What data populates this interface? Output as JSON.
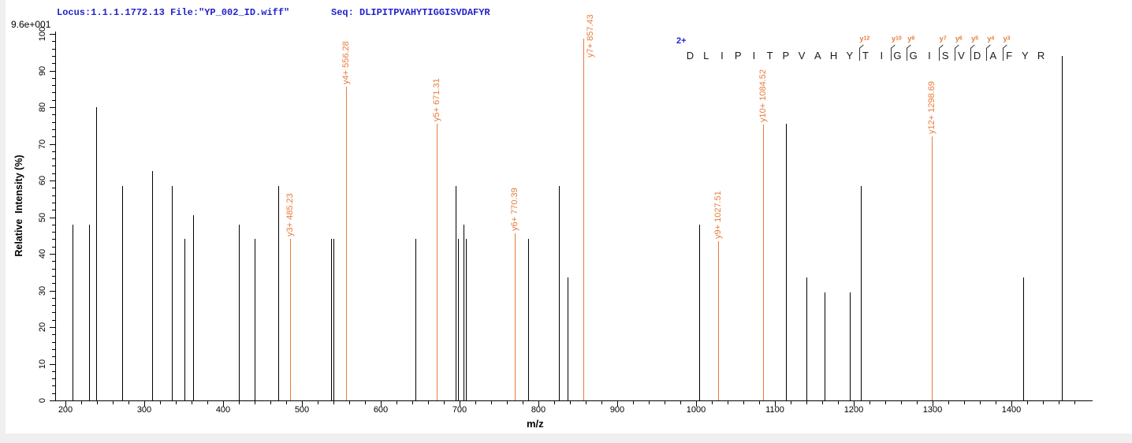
{
  "header": {
    "locus_file": "Locus:1.1.1.1772.13 File:\"YP_002_ID.wiff\"",
    "seq": "Seq: DLIPITPVAHYTIGGISVDAFYR"
  },
  "scale_label": "9.6e+001",
  "colors": {
    "annotation_orange": "#e87b3b",
    "header_blue": "#2222cc",
    "peak_black": "#000000",
    "residue_gray": "#1a1a1a",
    "marker_gray": "#333333"
  },
  "peptide": {
    "charge": "2+",
    "sequence": "DLIPITPVAHYTIGGISVDAFYR",
    "fragment_markers": [
      {
        "label": "y12",
        "before_residue_index": 11
      },
      {
        "label": "y10",
        "before_residue_index": 13
      },
      {
        "label": "y9",
        "before_residue_index": 14
      },
      {
        "label": "y7",
        "before_residue_index": 16
      },
      {
        "label": "y6",
        "before_residue_index": 17
      },
      {
        "label": "y5",
        "before_residue_index": 18
      },
      {
        "label": "y4",
        "before_residue_index": 19
      },
      {
        "label": "y3",
        "before_residue_index": 20
      }
    ]
  },
  "chart_data": {
    "type": "bar",
    "subtype": "tandem-ms-stick-spectrum",
    "title": "",
    "xlabel": "m/z",
    "ylabel": "Relative  Intensity (%)",
    "x_axis": {
      "min": 187,
      "max": 1502,
      "first_label": 200,
      "last_label": 1400,
      "major_tick_step": 100,
      "minor_tick_step": 20,
      "minor_tick_end": 1480
    },
    "y_axis": {
      "min": 0,
      "max": 100,
      "major_tick_step": 10,
      "minor_tick_step": 2,
      "max_intensity_label": "9.6e+001"
    },
    "peaks": [
      [
        209,
        48
      ],
      [
        230,
        48
      ],
      [
        239,
        80
      ],
      [
        272,
        58.5
      ],
      [
        310,
        62.5
      ],
      [
        335,
        58.5
      ],
      [
        351,
        44
      ],
      [
        362,
        50.5
      ],
      [
        420,
        48
      ],
      [
        440,
        44
      ],
      [
        470,
        58.5
      ],
      [
        537,
        44
      ],
      [
        540,
        44
      ],
      [
        644,
        44
      ],
      [
        695,
        58.5
      ],
      [
        698,
        44
      ],
      [
        705,
        48
      ],
      [
        708,
        44
      ],
      [
        787,
        44
      ],
      [
        826,
        58.5
      ],
      [
        837,
        33.5
      ],
      [
        1004,
        48
      ],
      [
        1114,
        75.5
      ],
      [
        1140,
        33.5
      ],
      [
        1163,
        29.5
      ],
      [
        1195,
        29.5
      ],
      [
        1209,
        58.5
      ],
      [
        1415,
        33.5
      ],
      [
        1464,
        94
      ]
    ],
    "annotated_peaks": [
      {
        "ion": "y3+",
        "mz": 485.23,
        "intensity": 44
      },
      {
        "ion": "y4+",
        "mz": 556.28,
        "intensity": 85.5
      },
      {
        "ion": "y5+",
        "mz": 671.31,
        "intensity": 75.5
      },
      {
        "ion": "y6+",
        "mz": 770.39,
        "intensity": 45.5
      },
      {
        "ion": "y7+",
        "mz": 857.43,
        "intensity": 98.8
      },
      {
        "ion": "y9+",
        "mz": 1027.51,
        "intensity": 43.5
      },
      {
        "ion": "y10+",
        "mz": 1084.52,
        "intensity": 75.3
      },
      {
        "ion": "y12+",
        "mz": 1298.69,
        "intensity": 72
      }
    ]
  }
}
